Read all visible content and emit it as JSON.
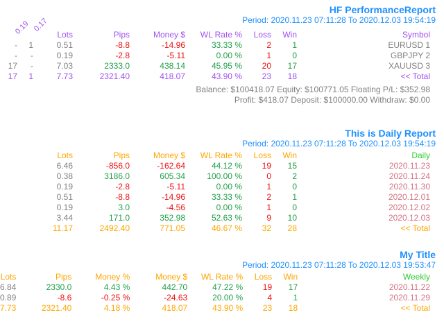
{
  "colors": {
    "blue": "#1E90FF",
    "purple": "#A052F0",
    "orange": "#FFA500",
    "gray": "#808080",
    "red": "#EE1111",
    "green": "#22A04A",
    "lime": "#33CC33",
    "pink": "#D4737F"
  },
  "sections": [
    {
      "title": "HF PerformanceReport",
      "period": "Period: 2020.11.23 07:11:28 To 2020.12.03 19:54:19",
      "rotated_headers": [
        "0.19",
        "0.17"
      ],
      "headers": [
        [
          "",
          "purple"
        ],
        [
          "",
          "purple"
        ],
        [
          "Lots",
          "purple"
        ],
        [
          "Pips",
          "purple"
        ],
        [
          "Money $",
          "purple"
        ],
        [
          "WL Rate %",
          "purple"
        ],
        [
          "Loss",
          "purple"
        ],
        [
          "Win",
          "purple"
        ],
        [
          "Symbol",
          "purple"
        ]
      ],
      "rows": [
        [
          [
            "-",
            "gray"
          ],
          [
            "1",
            "gray"
          ],
          [
            "0.51",
            "gray"
          ],
          [
            "-8.8",
            "red"
          ],
          [
            "-14.96",
            "red"
          ],
          [
            "33.33 %",
            "green"
          ],
          [
            "2",
            "red"
          ],
          [
            "1",
            "green"
          ],
          [
            "EURUSD 1",
            "gray"
          ]
        ],
        [
          [
            "-",
            "gray"
          ],
          [
            "-",
            "gray"
          ],
          [
            "0.19",
            "gray"
          ],
          [
            "-2.8",
            "red"
          ],
          [
            "-5.11",
            "red"
          ],
          [
            "0.00 %",
            "green"
          ],
          [
            "1",
            "red"
          ],
          [
            "0",
            "green"
          ],
          [
            "GBPJPY 2",
            "gray"
          ]
        ],
        [
          [
            "17",
            "gray"
          ],
          [
            "-",
            "gray"
          ],
          [
            "7.03",
            "gray"
          ],
          [
            "2333.0",
            "green"
          ],
          [
            "438.14",
            "green"
          ],
          [
            "45.95 %",
            "green"
          ],
          [
            "20",
            "red"
          ],
          [
            "17",
            "green"
          ],
          [
            "XAUUSD 3",
            "gray"
          ]
        ]
      ],
      "total": [
        [
          [
            "17",
            "purple"
          ],
          [
            "1",
            "purple"
          ],
          [
            "7.73",
            "purple"
          ],
          [
            "2321.40",
            "purple"
          ],
          [
            "418.07",
            "purple"
          ],
          [
            "43.90 %",
            "purple"
          ],
          [
            "23",
            "purple"
          ],
          [
            "18",
            "purple"
          ],
          [
            "<< Total",
            "purple"
          ]
        ]
      ],
      "footer_lines": [
        "Balance: $100418.07 Equity: $100771.05 Floating P/L: $352.98",
        "Profit: $418.07 Deposit: $100000.00 Withdraw: $0.00"
      ]
    },
    {
      "title": "This is Daily Report",
      "period": "Period: 2020.11.23 07:11:28 To 2020.12.03 19:54:19",
      "headers": [
        [
          "Lots",
          "orange"
        ],
        [
          "Pips",
          "orange"
        ],
        [
          "Money $",
          "orange"
        ],
        [
          "WL Rate %",
          "orange"
        ],
        [
          "Loss",
          "orange"
        ],
        [
          "Win",
          "orange"
        ],
        [
          "Daily",
          "lime"
        ]
      ],
      "rows": [
        [
          [
            "6.46",
            "gray"
          ],
          [
            "-856.0",
            "red"
          ],
          [
            "-162.64",
            "red"
          ],
          [
            "44.12 %",
            "green"
          ],
          [
            "19",
            "red"
          ],
          [
            "15",
            "green"
          ],
          [
            "2020.11.23",
            "pink"
          ]
        ],
        [
          [
            "0.38",
            "gray"
          ],
          [
            "3186.0",
            "green"
          ],
          [
            "605.34",
            "green"
          ],
          [
            "100.00 %",
            "green"
          ],
          [
            "0",
            "red"
          ],
          [
            "2",
            "green"
          ],
          [
            "2020.11.24",
            "pink"
          ]
        ],
        [
          [
            "0.19",
            "gray"
          ],
          [
            "-2.8",
            "red"
          ],
          [
            "-5.11",
            "red"
          ],
          [
            "0.00 %",
            "green"
          ],
          [
            "1",
            "red"
          ],
          [
            "0",
            "green"
          ],
          [
            "2020.11.30",
            "pink"
          ]
        ],
        [
          [
            "0.51",
            "gray"
          ],
          [
            "-8.8",
            "red"
          ],
          [
            "-14.96",
            "red"
          ],
          [
            "33.33 %",
            "green"
          ],
          [
            "2",
            "red"
          ],
          [
            "1",
            "green"
          ],
          [
            "2020.12.01",
            "pink"
          ]
        ],
        [
          [
            "0.19",
            "gray"
          ],
          [
            "3.0",
            "green"
          ],
          [
            "-4.56",
            "red"
          ],
          [
            "0.00 %",
            "green"
          ],
          [
            "1",
            "red"
          ],
          [
            "0",
            "green"
          ],
          [
            "2020.12.02",
            "pink"
          ]
        ],
        [
          [
            "3.44",
            "gray"
          ],
          [
            "171.0",
            "green"
          ],
          [
            "352.98",
            "green"
          ],
          [
            "52.63 %",
            "green"
          ],
          [
            "9",
            "red"
          ],
          [
            "10",
            "green"
          ],
          [
            "2020.12.03",
            "pink"
          ]
        ]
      ],
      "total": [
        [
          [
            "11.17",
            "orange"
          ],
          [
            "2492.40",
            "orange"
          ],
          [
            "771.05",
            "orange"
          ],
          [
            "46.67 %",
            "orange"
          ],
          [
            "32",
            "orange"
          ],
          [
            "28",
            "orange"
          ],
          [
            "<< Total",
            "orange"
          ]
        ]
      ],
      "footer_lines": []
    },
    {
      "title": "My Title",
      "period": "Period: 2020.11.23 07:11:28 To 2020.12.03 19:53:47",
      "headers": [
        [
          "Lots",
          "orange"
        ],
        [
          "Pips",
          "orange"
        ],
        [
          "Money %",
          "orange"
        ],
        [
          "Money $",
          "orange"
        ],
        [
          "WL Rate %",
          "orange"
        ],
        [
          "Loss",
          "orange"
        ],
        [
          "Win",
          "orange"
        ],
        [
          "Weekly",
          "lime"
        ]
      ],
      "rows": [
        [
          [
            "6.84",
            "gray"
          ],
          [
            "2330.0",
            "green"
          ],
          [
            "4.43 %",
            "green"
          ],
          [
            "442.70",
            "green"
          ],
          [
            "47.22 %",
            "green"
          ],
          [
            "19",
            "red"
          ],
          [
            "17",
            "green"
          ],
          [
            "2020.11.22",
            "pink"
          ]
        ],
        [
          [
            "0.89",
            "gray"
          ],
          [
            "-8.6",
            "red"
          ],
          [
            "-0.25 %",
            "red"
          ],
          [
            "-24.63",
            "red"
          ],
          [
            "20.00 %",
            "green"
          ],
          [
            "4",
            "red"
          ],
          [
            "1",
            "green"
          ],
          [
            "2020.11.29",
            "pink"
          ]
        ]
      ],
      "total": [
        [
          [
            "7.73",
            "orange"
          ],
          [
            "2321.40",
            "orange"
          ],
          [
            "4.18 %",
            "orange"
          ],
          [
            "418.07",
            "orange"
          ],
          [
            "43.90 %",
            "orange"
          ],
          [
            "23",
            "orange"
          ],
          [
            "18",
            "orange"
          ],
          [
            "<< Total",
            "orange"
          ]
        ]
      ],
      "footer_lines": []
    }
  ]
}
